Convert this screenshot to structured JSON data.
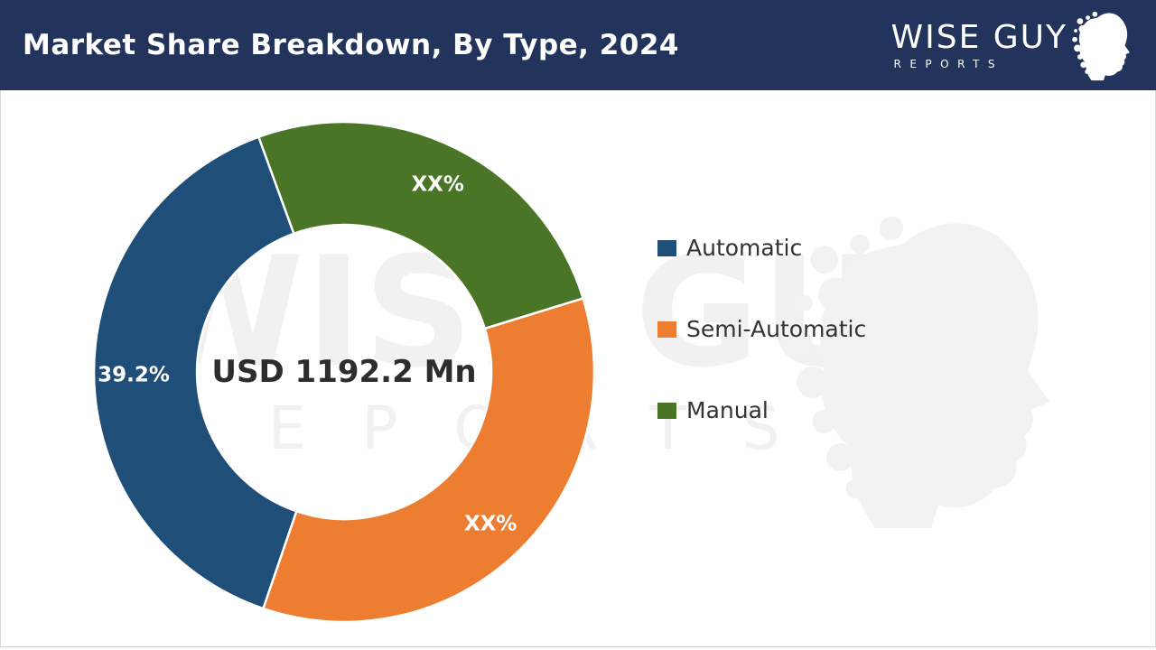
{
  "header": {
    "title": "Market Share Breakdown, By Type, 2024",
    "bg_color": "#22345C",
    "brand": {
      "name": "WISE GUY",
      "sub": "REPORTS"
    }
  },
  "watermark": {
    "name": "WISE GUY",
    "sub": "REPORTS"
  },
  "chart_data": {
    "type": "pie",
    "subtype": "donut",
    "title": "Market Share Breakdown, By Type, 2024",
    "center_label": "USD 1192.2 Mn",
    "legend_position": "right",
    "start_angle_deg": -20,
    "segments": [
      {
        "name": "Automatic",
        "value": 39.2,
        "label": "39.2%",
        "color": "#1F4E79"
      },
      {
        "name": "Semi-Automatic",
        "value": 35.0,
        "label": "XX%",
        "color": "#ED7D31"
      },
      {
        "name": "Manual",
        "value": 25.8,
        "label": "XX%",
        "color": "#4A7526"
      }
    ]
  }
}
